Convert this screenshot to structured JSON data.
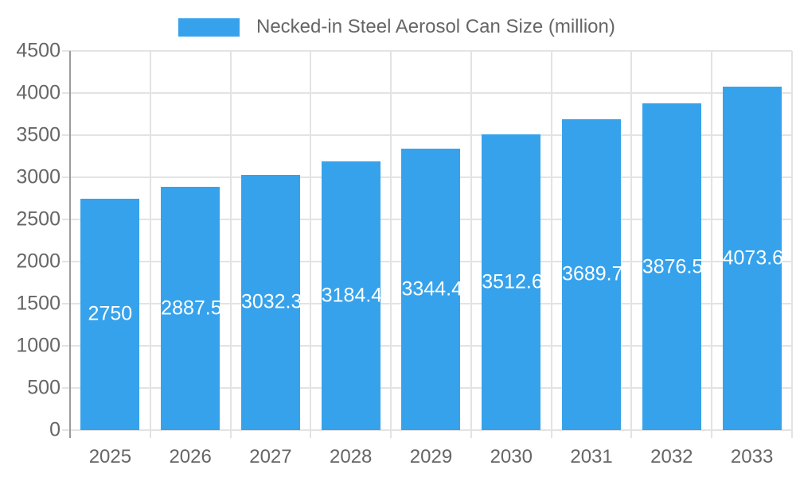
{
  "legend": {
    "label": "Necked-in Steel Aerosol Can Size (million)",
    "swatch_color": "#36a2eb"
  },
  "chart_data": {
    "type": "bar",
    "title": "Necked-in Steel Aerosol Can Size (million)",
    "series_name": "Necked-in Steel Aerosol Can Size (million)",
    "categories": [
      "2025",
      "2026",
      "2027",
      "2028",
      "2029",
      "2030",
      "2031",
      "2032",
      "2033"
    ],
    "values": [
      2750,
      2887.5,
      3032.38,
      3184.49,
      3344.42,
      3512.64,
      3689.78,
      3876.56,
      4073.69
    ],
    "labels": [
      "2750",
      "2887.5",
      "3032.38",
      "3184.49",
      "3344.42",
      "3512.64",
      "3689.78",
      "3876.56",
      "4073.69"
    ],
    "xlabel": "",
    "ylabel": "",
    "ylim": [
      0,
      4500
    ],
    "y_ticks": [
      0,
      500,
      1000,
      1500,
      2000,
      2500,
      3000,
      3500,
      4000,
      4500
    ],
    "grid": true,
    "legend_position": "top",
    "bar_color": "#36a2eb"
  },
  "colors": {
    "bar": "#36a2eb",
    "axis_text": "#666666",
    "gridline": "#e3e3e3",
    "axis_line": "#9b9b9b",
    "annotation_text": "#ffffff",
    "background": "#ffffff"
  }
}
